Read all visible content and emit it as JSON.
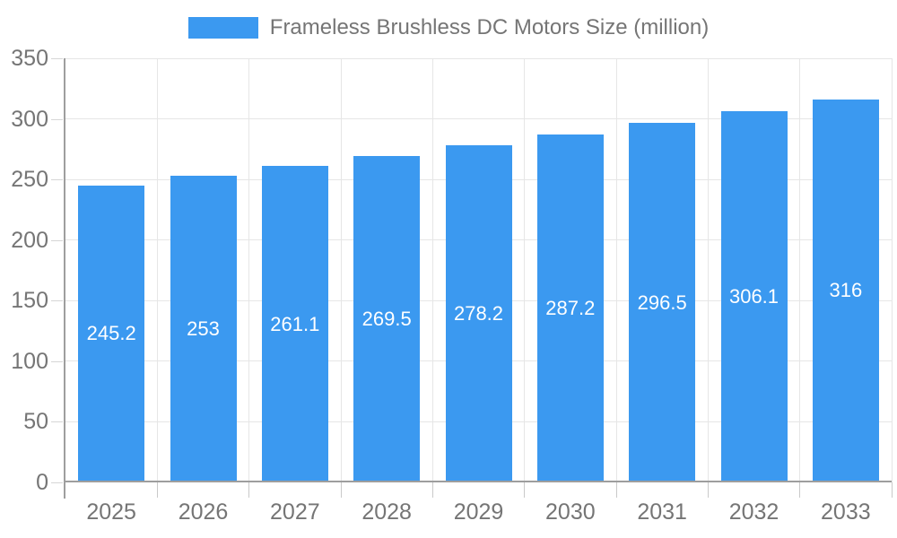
{
  "chart_data": {
    "type": "bar",
    "title": "Frameless Brushless DC Motors Size (million)",
    "categories": [
      "2025",
      "2026",
      "2027",
      "2028",
      "2029",
      "2030",
      "2031",
      "2032",
      "2033"
    ],
    "values": [
      245.2,
      253,
      261.1,
      269.5,
      278.2,
      287.2,
      296.5,
      306.1,
      316
    ],
    "value_labels": [
      "245.2",
      "253",
      "261.1",
      "269.5",
      "278.2",
      "287.2",
      "296.5",
      "306.1",
      "316"
    ],
    "y_tick_labels": [
      "0",
      "50",
      "100",
      "150",
      "200",
      "250",
      "300",
      "350"
    ],
    "y_ticks": [
      0,
      50,
      100,
      150,
      200,
      250,
      300,
      350
    ],
    "ylim": [
      0,
      350
    ],
    "xlabel": "",
    "ylabel": "",
    "grid": true,
    "legend_position": "top",
    "colors": {
      "bar": "#3B99F0",
      "bar_label": "#FFFFFF",
      "axis_line": "#9E9E9E",
      "grid_line": "#E6E6E6",
      "y_tick_mark": "#D6D6D6",
      "x_tick_mark": "#C9C9C9",
      "text": "#757575",
      "background": "#FFFFFF"
    }
  }
}
